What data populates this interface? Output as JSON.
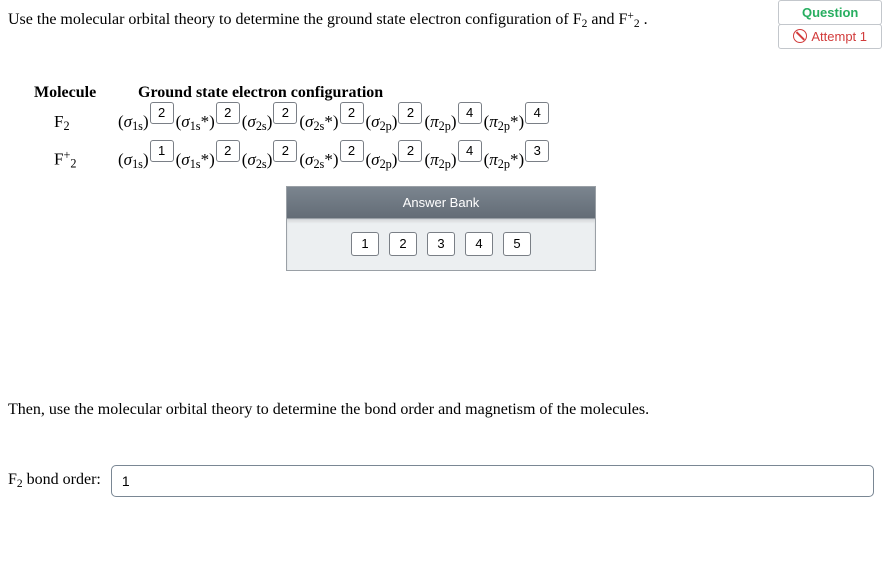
{
  "badges": {
    "question": "Question",
    "attempt": "Attempt 1"
  },
  "prompt": {
    "pre": "Use the molecular orbital theory to determine the ground state electron configuration of ",
    "mol1": "F",
    "mol1_sub": "2",
    "and": " and ",
    "mol2": "F",
    "mol2_sup": "+",
    "mol2_sub": "2",
    "post": " ."
  },
  "table": {
    "head_molecule": "Molecule",
    "head_config": "Ground state electron configuration"
  },
  "orbitals": [
    {
      "name_pre": "(",
      "sym": "σ",
      "sub": "1s",
      "name_post": ")"
    },
    {
      "name_pre": "(",
      "sym": "σ",
      "sub": "1s",
      "name_post": "*)"
    },
    {
      "name_pre": "(",
      "sym": "σ",
      "sub": "2s",
      "name_post": ")"
    },
    {
      "name_pre": "(",
      "sym": "σ",
      "sub": "2s",
      "name_post": "*)"
    },
    {
      "name_pre": "(",
      "sym": "σ",
      "sub": "2p",
      "name_post": ")"
    },
    {
      "name_pre": "(",
      "sym": "π",
      "sub": "2p",
      "name_post": ")"
    },
    {
      "name_pre": "(",
      "sym": "π",
      "sub": "2p",
      "name_post": "*)"
    }
  ],
  "rows": [
    {
      "label": "F",
      "label_sub": "2",
      "label_sup": "",
      "fills": [
        "2",
        "2",
        "2",
        "2",
        "2",
        "4",
        "4"
      ]
    },
    {
      "label": "F",
      "label_sub": "2",
      "label_sup": "+",
      "fills": [
        "1",
        "2",
        "2",
        "2",
        "2",
        "4",
        "3"
      ]
    }
  ],
  "bank": {
    "title": "Answer Bank",
    "items": [
      "1",
      "2",
      "3",
      "4",
      "5"
    ]
  },
  "then": "Then, use the molecular orbital theory to determine the bond order and magnetism of the molecules.",
  "bond": {
    "label_pre": "F",
    "label_sub": "2",
    "label_post": " bond order:",
    "value": "1"
  },
  "colors": {
    "slot_border": "#7a7f86",
    "bank_header_bg": "#6e7882",
    "badge_green": "#27ae60",
    "badge_red": "#d23b3b"
  }
}
